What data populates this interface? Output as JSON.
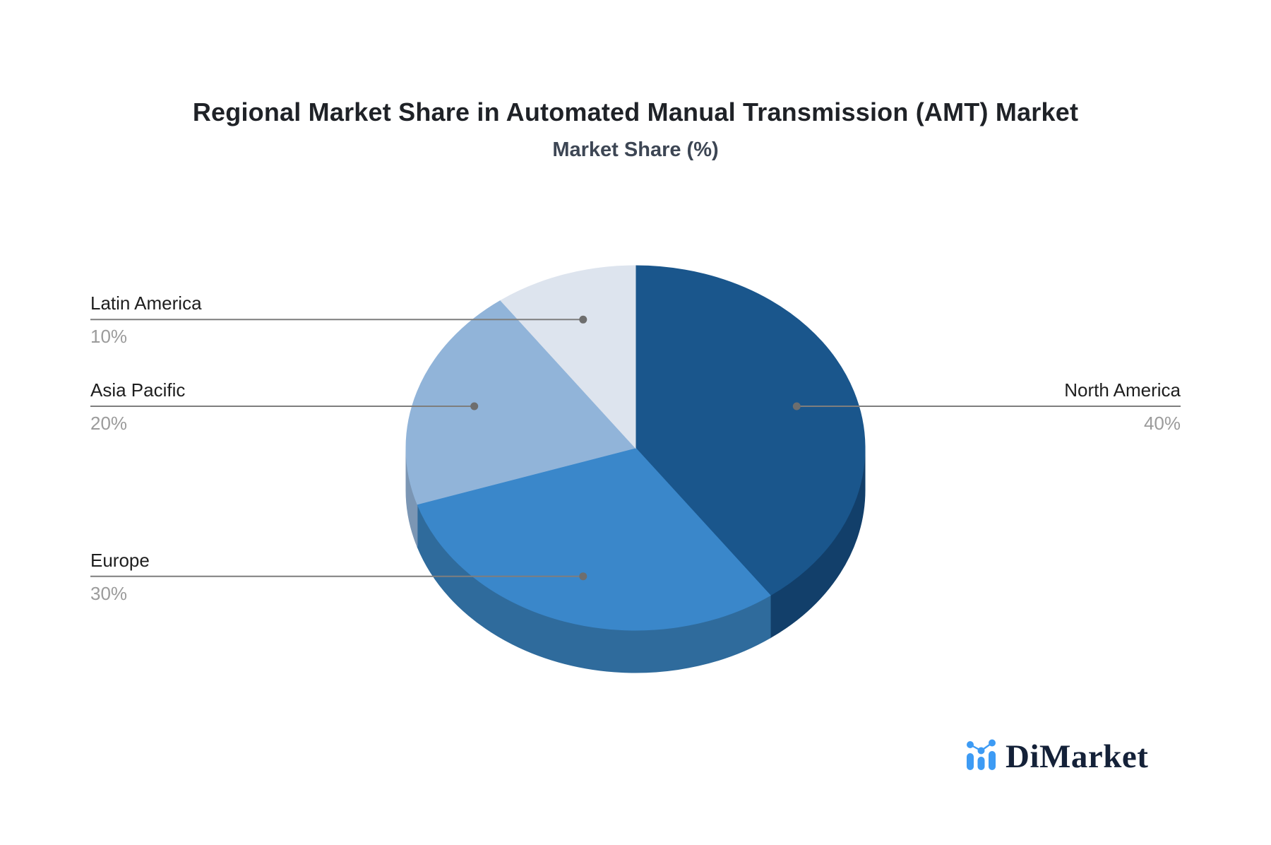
{
  "header": {
    "title": "Regional Market Share in Automated Manual Transmission (AMT) Market",
    "subtitle": "Market Share (%)"
  },
  "chart_data": {
    "type": "pie",
    "style": "3d",
    "title": "Regional Market Share in Automated Manual Transmission (AMT) Market",
    "subtitle": "Market Share (%)",
    "unit": "%",
    "start_angle_deg": 90,
    "direction": "clockwise",
    "legend_position": "none",
    "labels": [
      "North America",
      "Europe",
      "Asia Pacific",
      "Latin America"
    ],
    "values": [
      40,
      30,
      20,
      10
    ],
    "value_labels": [
      "40%",
      "30%",
      "20%",
      "10%"
    ],
    "colors": [
      "#1a568c",
      "#3a87ca",
      "#91b4d9",
      "#dde4ee"
    ],
    "side_colors": [
      "#123f6a",
      "#2f6b9c",
      "#7b96b4",
      "#c8d1e0"
    ],
    "label_line_color": "#7e7e7e",
    "label_dot_color": "#6e6e6e",
    "label_text_color": "#1e1e1e",
    "value_text_color": "#9b9b9b"
  },
  "branding": {
    "logo_text": "DiMarket",
    "logo_text_color": "#142138",
    "logo_icon": "bar-chart-logo-icon",
    "logo_icon_color": "#3d9bf4"
  }
}
